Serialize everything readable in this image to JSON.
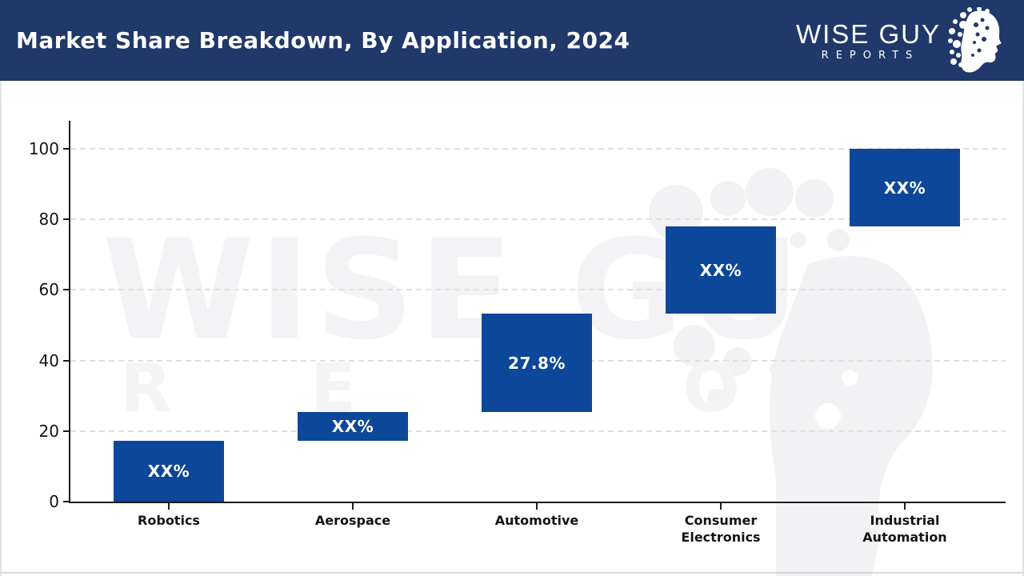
{
  "header": {
    "title": "Market Share Breakdown, By Application, 2024"
  },
  "logo": {
    "line1": "WISE GUY",
    "line2": "REPORTS"
  },
  "watermark": {
    "line1": "WISE GU",
    "line2": "R E P O"
  },
  "colors": {
    "header_bg": "#20386a",
    "bar_fill": "#0c479a",
    "bar_label": "#ffffff",
    "grid": "#e0e0e0",
    "axis": "#1c1c1c",
    "watermark": "#f3f3f6"
  },
  "chart_data": {
    "type": "bar",
    "variant": "waterfall",
    "title": "Market Share Breakdown, By Application, 2024",
    "xlabel": "",
    "ylabel": "",
    "categories": [
      "Robotics",
      "Aerospace",
      "Automotive",
      "Consumer\nElectronics",
      "Industrial\nAutomation"
    ],
    "segments": [
      {
        "category": "Robotics",
        "start": 0,
        "end": 17.2,
        "label": "XX%"
      },
      {
        "category": "Aerospace",
        "start": 17.2,
        "end": 25.4,
        "label": "XX%"
      },
      {
        "category": "Automotive",
        "start": 25.4,
        "end": 53.2,
        "value": 27.8,
        "label": "27.8%"
      },
      {
        "category": "Consumer Electronics",
        "start": 53.2,
        "end": 78.0,
        "label": "XX%"
      },
      {
        "category": "Industrial Automation",
        "start": 78.0,
        "end": 100.0,
        "label": "XX%"
      }
    ],
    "yticks": [
      0,
      20,
      40,
      60,
      80,
      100
    ],
    "ylim": [
      0,
      108
    ],
    "grid": "horizontal-dashed",
    "legend": null
  }
}
